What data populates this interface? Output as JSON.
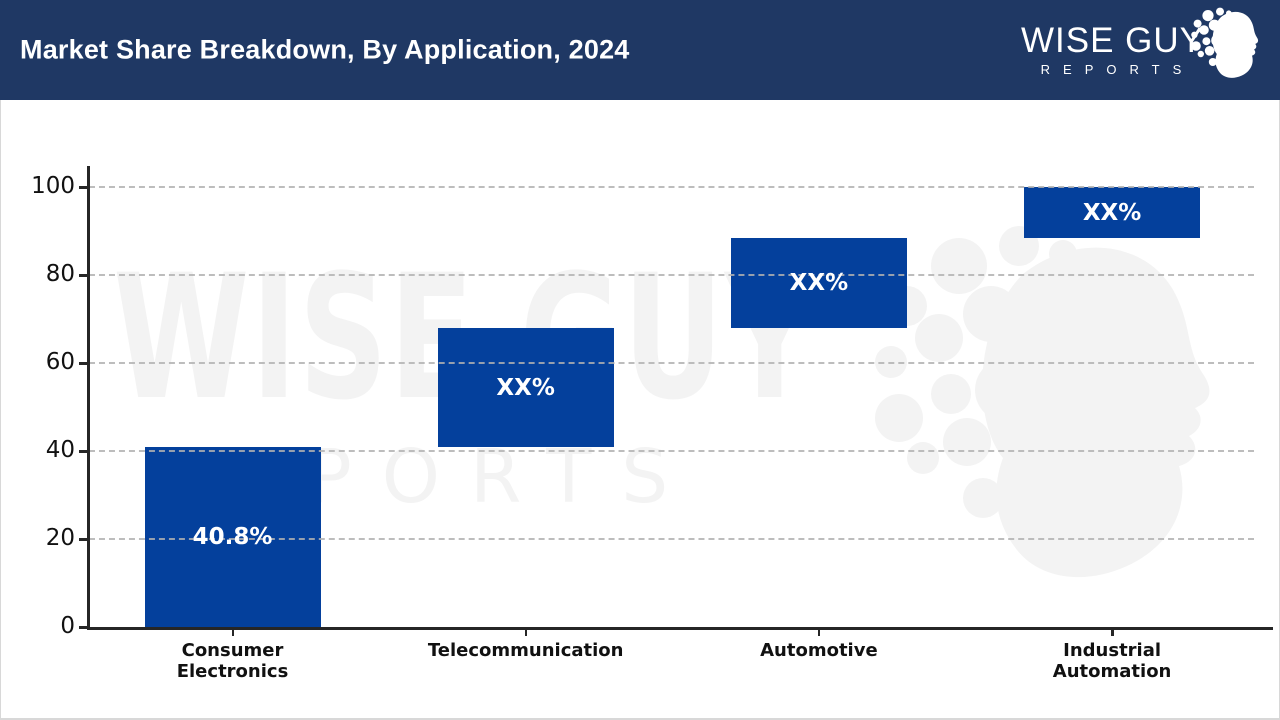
{
  "header": {
    "title": "Market Share Breakdown, By Application, 2024",
    "logo": {
      "primary": "WISE GUY",
      "secondary": "REPORTS"
    }
  },
  "watermark": {
    "primary": "WISE GUY",
    "secondary": "REPORTS"
  },
  "colors": {
    "header_bg": "#1f3864",
    "bar": "#04409c",
    "bar_label": "#ffffff",
    "grid": "#b2b2b2",
    "axis": "#262626",
    "tick_text": "#111111",
    "watermark": "#f3f3f3",
    "frame_border": "#d8d8d8"
  },
  "chart_data": {
    "type": "bar",
    "subtype": "waterfall-floating-bars",
    "title": "Market Share Breakdown, By Application, 2024",
    "categories": [
      "Consumer Electronics",
      "Telecommunication",
      "Automotive",
      "Industrial Automation"
    ],
    "category_lines": [
      [
        "Consumer",
        "Electronics"
      ],
      [
        "Telecommunication"
      ],
      [
        "Automotive"
      ],
      [
        "Industrial",
        "Automation"
      ]
    ],
    "segments": [
      {
        "category": "Consumer Electronics",
        "start": 0,
        "end": 40.8,
        "label": "40.8%"
      },
      {
        "category": "Telecommunication",
        "start": 40.8,
        "end": 68,
        "label": "XX%"
      },
      {
        "category": "Automotive",
        "start": 68,
        "end": 88.4,
        "label": "XX%"
      },
      {
        "category": "Industrial Automation",
        "start": 88.4,
        "end": 100,
        "label": "XX%"
      }
    ],
    "ylim": [
      0,
      100
    ],
    "yticks": [
      0,
      20,
      40,
      60,
      80,
      100
    ],
    "xlabel": "",
    "ylabel": "",
    "grid": "horizontal dashed, drawn over bars",
    "legend": null
  }
}
